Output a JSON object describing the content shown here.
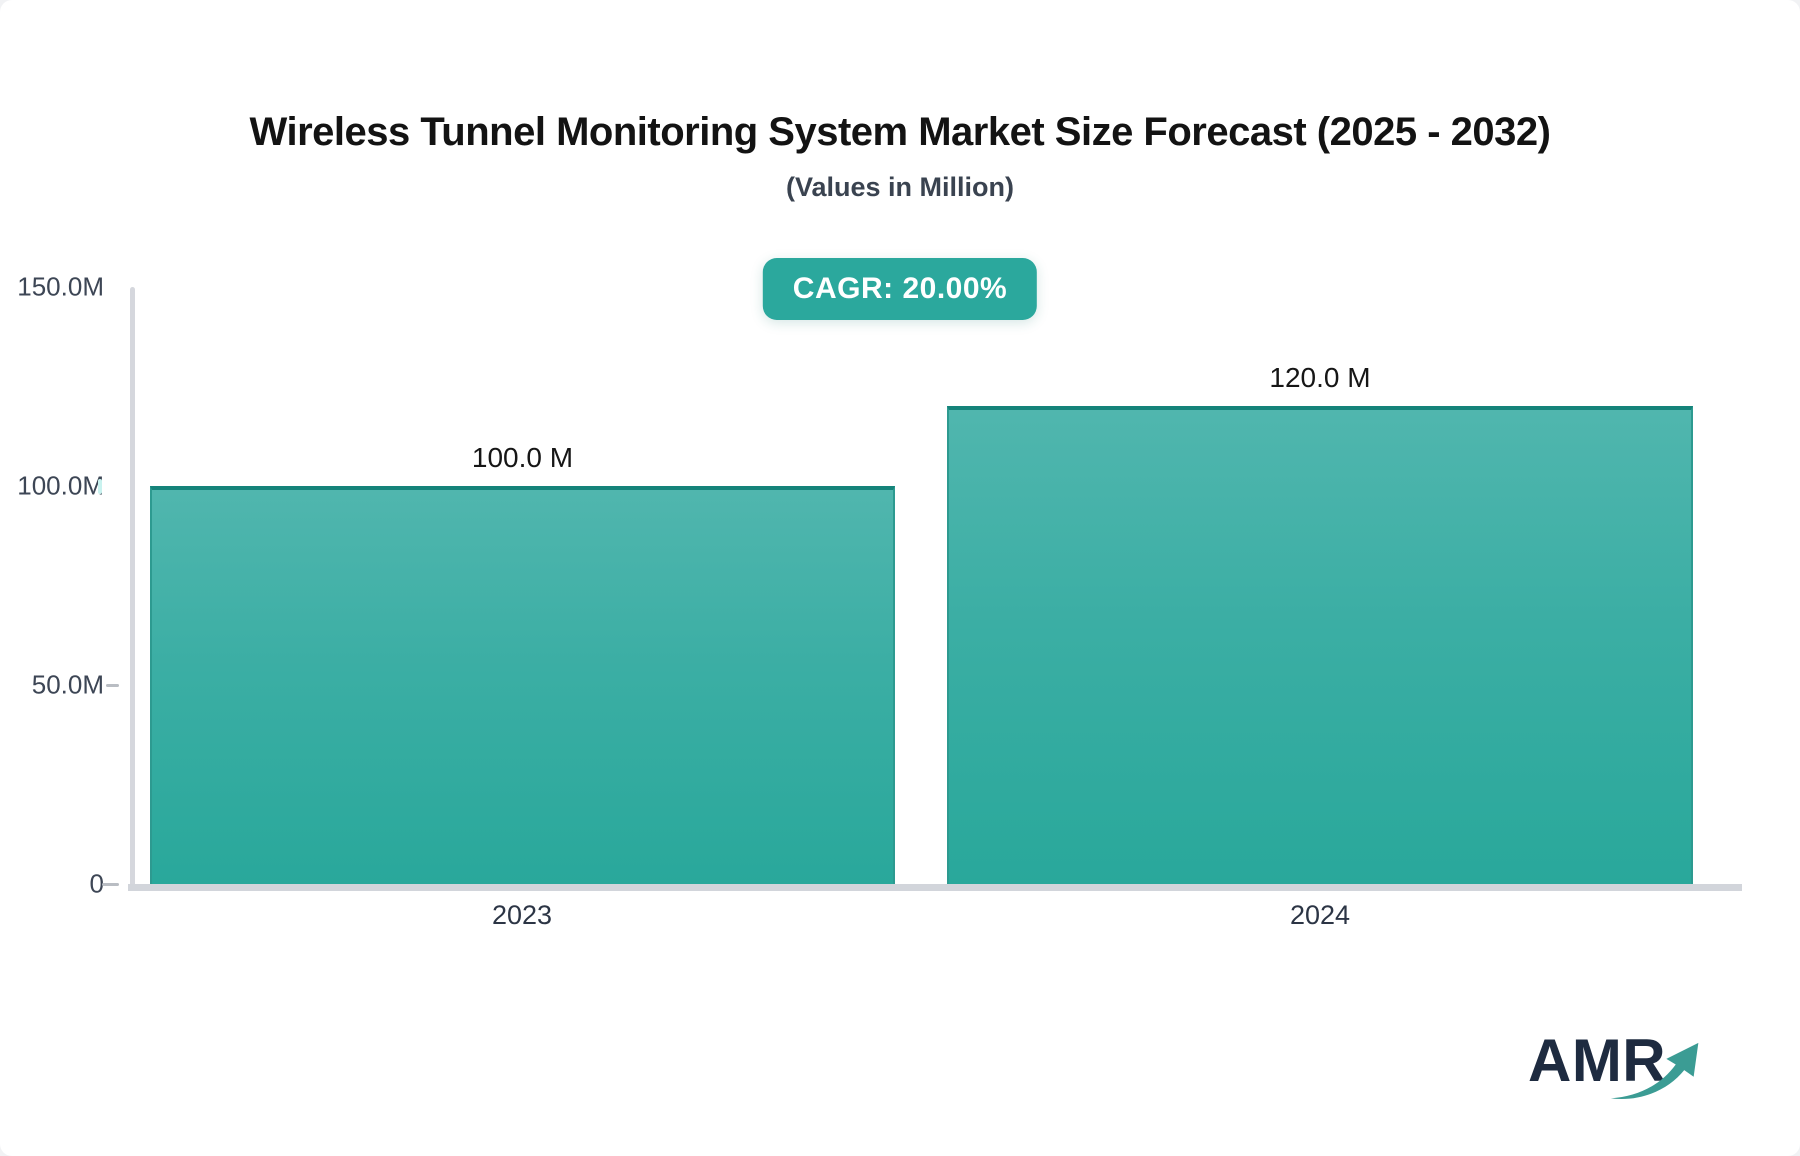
{
  "header": {
    "title": "Wireless Tunnel Monitoring System Market Size Forecast (2025 - 2032)",
    "subtitle": "(Values in Million)"
  },
  "badge": {
    "label": "CAGR: 20.00%",
    "bg_color": "#2ba89d",
    "text_color": "#ffffff"
  },
  "chart_data": {
    "type": "bar",
    "title": "Wireless Tunnel Monitoring System Market Size Forecast (2025 - 2032)",
    "subtitle": "(Values in Million)",
    "categories": [
      "2023",
      "2024"
    ],
    "values": [
      100.0,
      120.0
    ],
    "value_labels": [
      "100.0 M",
      "120.0 M"
    ],
    "cagr_percent": 20.0,
    "ylim": [
      0,
      150
    ],
    "yticks": [
      "150.0M",
      "100.0M",
      "50.0M",
      "0"
    ],
    "ytick_values": [
      150,
      100,
      50,
      0
    ],
    "xlabel": "",
    "ylabel": "",
    "grid": false,
    "legend": false,
    "bar_color_top": "#50b6ae",
    "bar_color_bottom": "#29a89b",
    "bar_edge_color": "#15837a",
    "axis_color": "#d4d6dc"
  },
  "logo": {
    "text": "AMR",
    "text_color": "#1e2b40",
    "arrow_color": "#3b9c94"
  }
}
